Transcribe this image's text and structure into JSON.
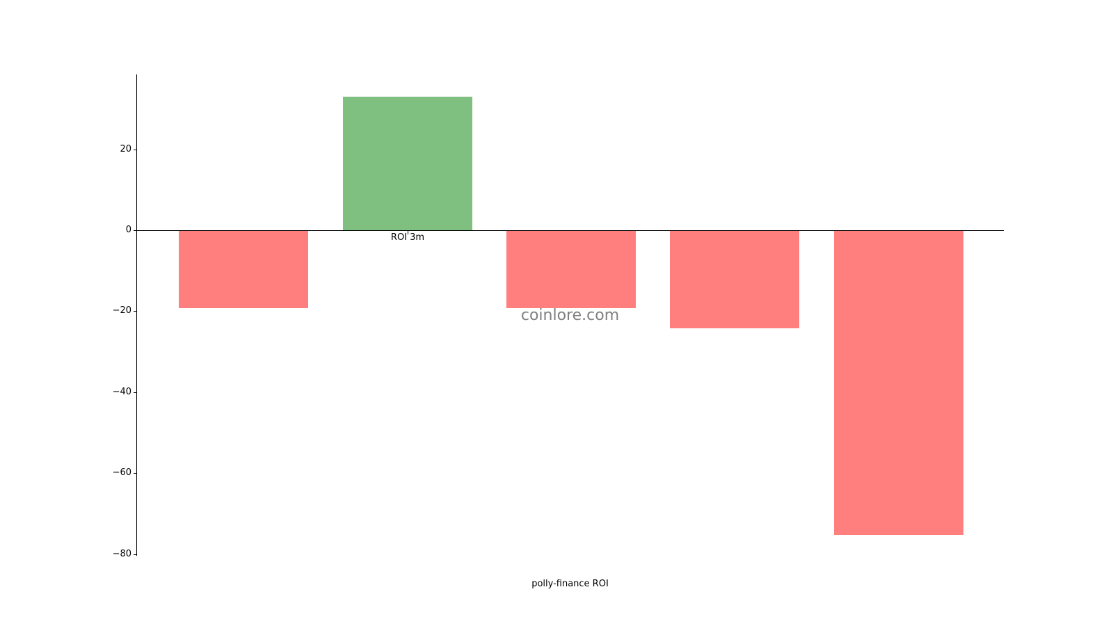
{
  "watermark": "coinlore.com",
  "chart_data": {
    "type": "bar",
    "title": "polly-finance ROI",
    "watermark": "coinlore.com",
    "categories": [
      "",
      "ROI 3m",
      "",
      "",
      ""
    ],
    "values": [
      -19,
      33,
      -19,
      -24,
      -75
    ],
    "yticks": [
      20,
      0,
      -20,
      -40,
      -60,
      -80
    ],
    "ylim": [
      -80.4,
      38.4
    ],
    "grid": false,
    "legend": "none",
    "colors": {
      "positive_bar": "#7fbf7f",
      "negative_bar": "#ff7f7f",
      "axis": "#000000",
      "tick_label": "#000000",
      "title": "#000000",
      "watermark": "#7f7f7f",
      "background": "#ffffff"
    }
  }
}
